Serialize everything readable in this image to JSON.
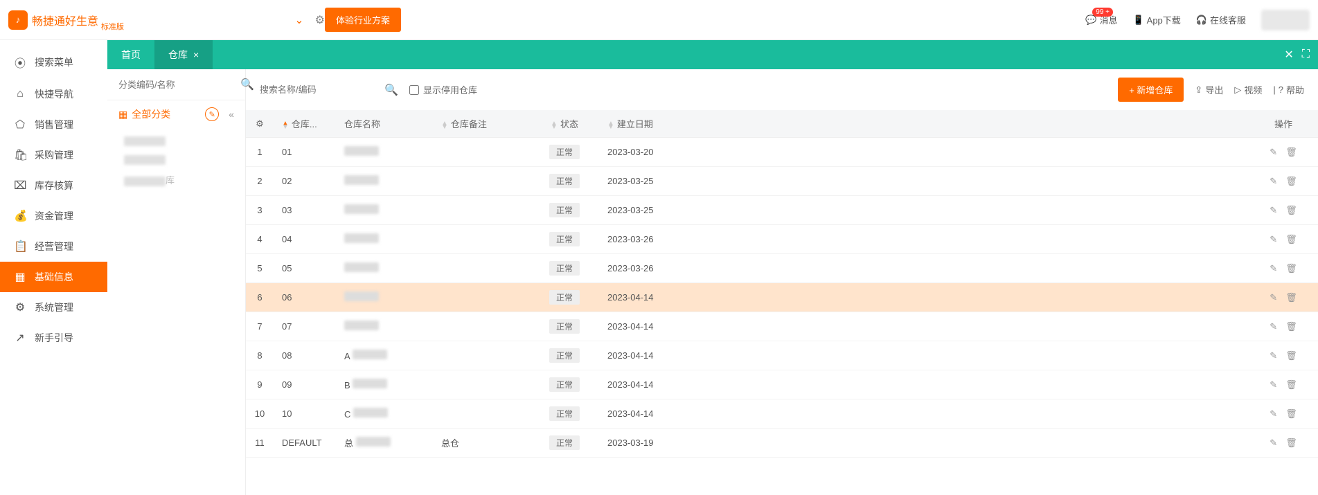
{
  "header": {
    "logo_text": "畅捷通好生意",
    "edition": "标准版",
    "experience_btn": "体验行业方案",
    "msg": "消息",
    "msg_badge": "99 +",
    "app_download": "App下载",
    "online_service": "在线客服"
  },
  "sidebar": [
    {
      "icon": "⦿",
      "label": "搜索菜单"
    },
    {
      "icon": "⌂",
      "label": "快捷导航"
    },
    {
      "icon": "⬠",
      "label": "销售管理"
    },
    {
      "icon": "🛍",
      "label": "采购管理"
    },
    {
      "icon": "⌧",
      "label": "库存核算"
    },
    {
      "icon": "💰",
      "label": "资金管理"
    },
    {
      "icon": "📋",
      "label": "经营管理"
    },
    {
      "icon": "▦",
      "label": "基础信息",
      "active": true
    },
    {
      "icon": "⚙",
      "label": "系统管理"
    },
    {
      "icon": "↗",
      "label": "新手引导"
    }
  ],
  "tabs": {
    "home": "首页",
    "warehouse": "仓库"
  },
  "category": {
    "search_placeholder": "分类编码/名称",
    "all": "全部分类",
    "child_suffix": "库"
  },
  "toolbar": {
    "search_placeholder": "搜索名称/编码",
    "show_disabled": "显示停用仓库",
    "add_btn": "+ 新增仓库",
    "export": "导出",
    "video": "视频",
    "help": "帮助"
  },
  "table": {
    "headers": {
      "code": "仓库...",
      "name": "仓库名称",
      "remark": "仓库备注",
      "status": "状态",
      "created": "建立日期",
      "action": "操作"
    },
    "rows": [
      {
        "idx": "1",
        "code": "01",
        "name_blur": true,
        "remark": "",
        "status": "正常",
        "date": "2023-03-20"
      },
      {
        "idx": "2",
        "code": "02",
        "name_blur": true,
        "remark": "",
        "status": "正常",
        "date": "2023-03-25"
      },
      {
        "idx": "3",
        "code": "03",
        "name_blur": true,
        "remark": "",
        "status": "正常",
        "date": "2023-03-25"
      },
      {
        "idx": "4",
        "code": "04",
        "name_blur": true,
        "remark": "",
        "status": "正常",
        "date": "2023-03-26"
      },
      {
        "idx": "5",
        "code": "05",
        "name_blur": true,
        "remark": "",
        "status": "正常",
        "date": "2023-03-26"
      },
      {
        "idx": "6",
        "code": "06",
        "name_blur": true,
        "remark": "",
        "status": "正常",
        "date": "2023-04-14",
        "highlighted": true
      },
      {
        "idx": "7",
        "code": "07",
        "name_blur": true,
        "remark": "",
        "status": "正常",
        "date": "2023-04-14"
      },
      {
        "idx": "8",
        "code": "08",
        "name_prefix": "A",
        "name_blur": true,
        "remark": "",
        "status": "正常",
        "date": "2023-04-14"
      },
      {
        "idx": "9",
        "code": "09",
        "name_prefix": "B",
        "name_blur": true,
        "remark": "",
        "status": "正常",
        "date": "2023-04-14"
      },
      {
        "idx": "10",
        "code": "10",
        "name_prefix": "C",
        "name_blur": true,
        "remark": "",
        "status": "正常",
        "date": "2023-04-14"
      },
      {
        "idx": "11",
        "code": "DEFAULT",
        "name_prefix": "总",
        "name_blur": true,
        "remark": "总仓",
        "status": "正常",
        "date": "2023-03-19"
      }
    ]
  }
}
